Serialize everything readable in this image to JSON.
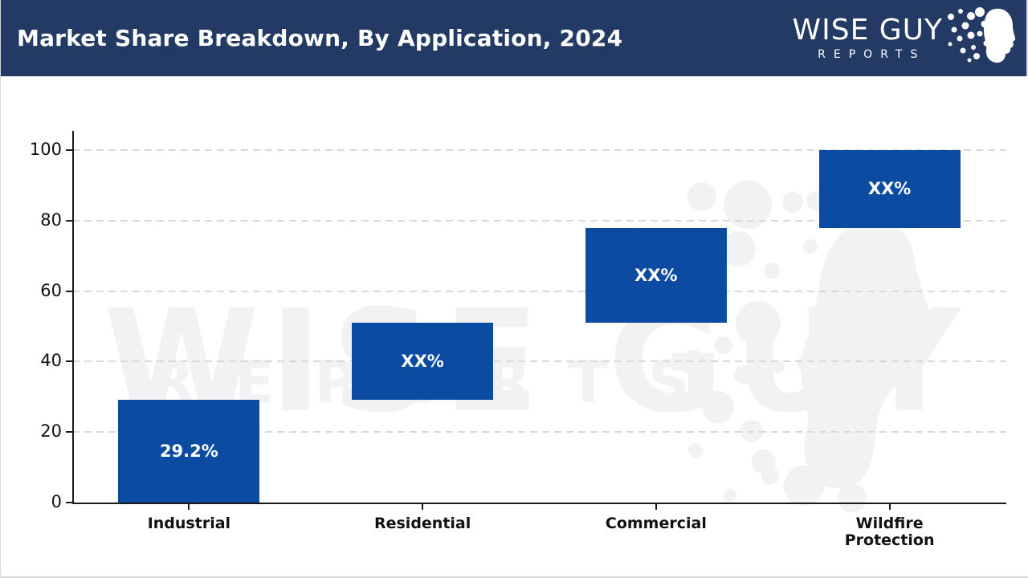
{
  "header": {
    "title": "Market Share Breakdown, By Application, 2024",
    "bg_color": "#223a64",
    "logo": {
      "line1": "WISE GUY",
      "line2": "REPORTS"
    }
  },
  "watermark": {
    "line1": "WISE GUY",
    "line2": "REPORTS"
  },
  "chart_data": {
    "type": "bar",
    "subtype": "waterfall",
    "title": "Market Share Breakdown, By Application, 2024",
    "categories": [
      "Industrial",
      "Residential",
      "Commercial",
      "Wildfire Protection"
    ],
    "series": [
      {
        "name": "Market Share",
        "segments": [
          [
            0,
            29.2
          ],
          [
            29.2,
            51.1
          ],
          [
            51.1,
            78.0
          ],
          [
            78.0,
            100.0
          ]
        ]
      }
    ],
    "bar_labels": [
      "29.2%",
      "XX%",
      "XX%",
      "XX%"
    ],
    "yticks": [
      0,
      20,
      40,
      60,
      80,
      100
    ],
    "ylim": [
      0,
      105.5
    ],
    "xlabel": "",
    "ylabel": "",
    "grid": "horizontal-dashed",
    "legend": "none",
    "bar_color": "#0b4ba1",
    "bar_label_color": "#ffffff",
    "axis_color": "#1a1a1a",
    "gridline_color": "#d9d9d9"
  }
}
